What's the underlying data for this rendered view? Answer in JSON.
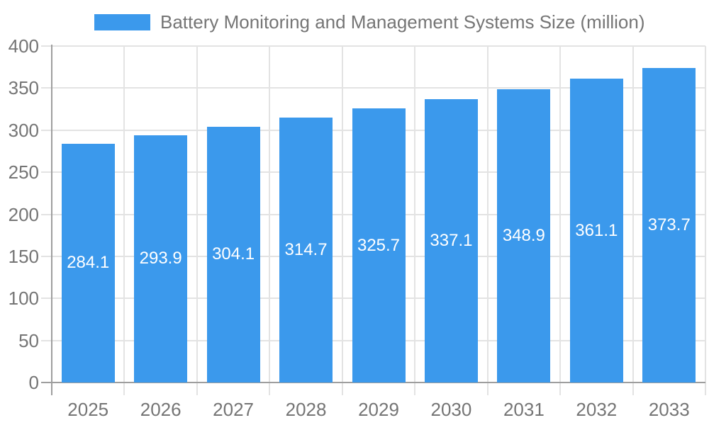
{
  "chart_data": {
    "type": "bar",
    "title": "Battery Monitoring and Management Systems Size (million)",
    "categories": [
      "2025",
      "2026",
      "2027",
      "2028",
      "2029",
      "2030",
      "2031",
      "2032",
      "2033"
    ],
    "series": [
      {
        "name": "Battery Monitoring and Management Systems Size (million)",
        "values": [
          284.1,
          293.9,
          304.1,
          314.7,
          325.7,
          337.1,
          348.9,
          361.1,
          373.7
        ]
      }
    ],
    "value_labels": [
      "284.1",
      "293.9",
      "304.1",
      "314.7",
      "325.7",
      "337.1",
      "348.9",
      "361.1",
      "373.7"
    ],
    "xlabel": "",
    "ylabel": "",
    "ylim": [
      0,
      400
    ],
    "ytick_step": 50,
    "yticks": [
      "0",
      "50",
      "100",
      "150",
      "200",
      "250",
      "300",
      "350",
      "400"
    ],
    "grid": true,
    "legend_position": "top",
    "colors": {
      "bar": "#3b99ec",
      "axis_text": "#757575",
      "grid": "#e3e3e3",
      "axis_line": "#9e9e9e",
      "value_label": "#ffffff",
      "background": "#ffffff"
    }
  }
}
